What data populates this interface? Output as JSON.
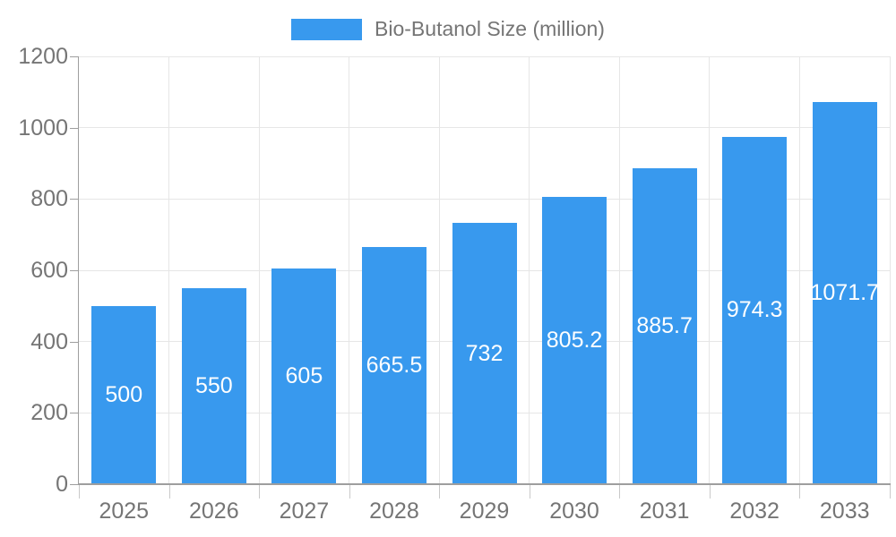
{
  "legend": {
    "label": "Bio-Butanol Size (million)"
  },
  "colors": {
    "bar": "#3899ee",
    "grid": "#e6e6e6",
    "axis": "#9e9e9e",
    "tick_label": "#757575",
    "bar_label": "#ffffff"
  },
  "chart_data": {
    "type": "bar",
    "title": "Bio-Butanol Size (million)",
    "series_name": "Bio-Butanol Size (million)",
    "categories": [
      "2025",
      "2026",
      "2027",
      "2028",
      "2029",
      "2030",
      "2031",
      "2032",
      "2033"
    ],
    "values": [
      500,
      550,
      605,
      665.5,
      732,
      805.2,
      885.7,
      974.3,
      1071.7
    ],
    "xlabel": "",
    "ylabel": "",
    "ylim": [
      0,
      1200
    ],
    "y_ticks": [
      0,
      200,
      400,
      600,
      800,
      1000,
      1200
    ],
    "grid": true,
    "legend_position": "top"
  }
}
